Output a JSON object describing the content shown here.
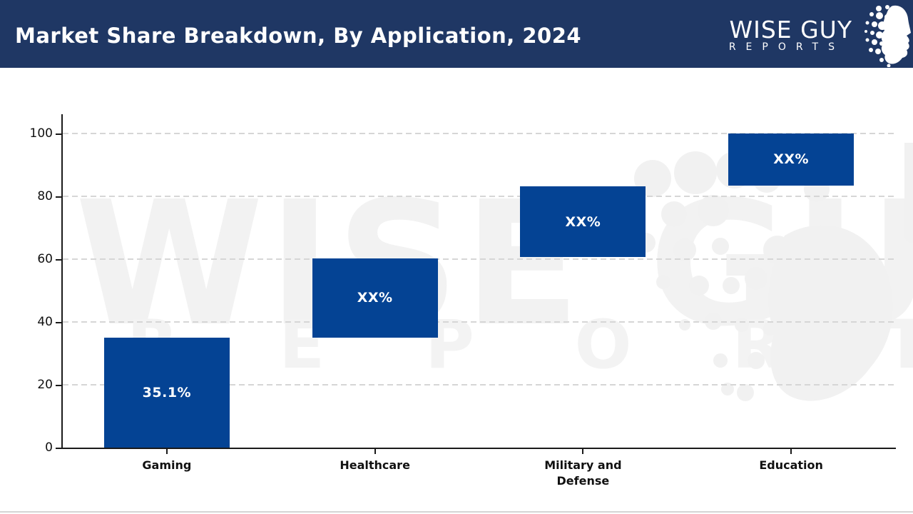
{
  "header": {
    "title": "Market Share Breakdown, By Application, 2024",
    "logo": {
      "line1": "WISE GUY",
      "line2": "REPORTS"
    },
    "bg_color": "#1f3764",
    "text_color": "#ffffff"
  },
  "watermark": {
    "line1": "WISE GUY",
    "line2": "R E P O R T S"
  },
  "chart_data": {
    "type": "bar",
    "subtype": "waterfall",
    "title": "Market Share Breakdown, By Application, 2024",
    "categories": [
      "Gaming",
      "Healthcare",
      "Military and Defense",
      "Education"
    ],
    "segments": [
      {
        "category": "Gaming",
        "start": 0,
        "end": 35.1,
        "label": "35.1%"
      },
      {
        "category": "Healthcare",
        "start": 35.1,
        "end": 60.3,
        "label": "XX%"
      },
      {
        "category": "Military and Defense",
        "start": 60.6,
        "end": 83.2,
        "label": "XX%"
      },
      {
        "category": "Education",
        "start": 83.5,
        "end": 100,
        "label": "XX%"
      }
    ],
    "ylim": [
      0,
      100
    ],
    "yticks": [
      0,
      20,
      40,
      60,
      80,
      100
    ],
    "xlabel": "",
    "ylabel": "",
    "grid": "horizontal-dashed",
    "legend": "none",
    "bar_color": "#044394",
    "bar_label_color": "#ffffff"
  }
}
